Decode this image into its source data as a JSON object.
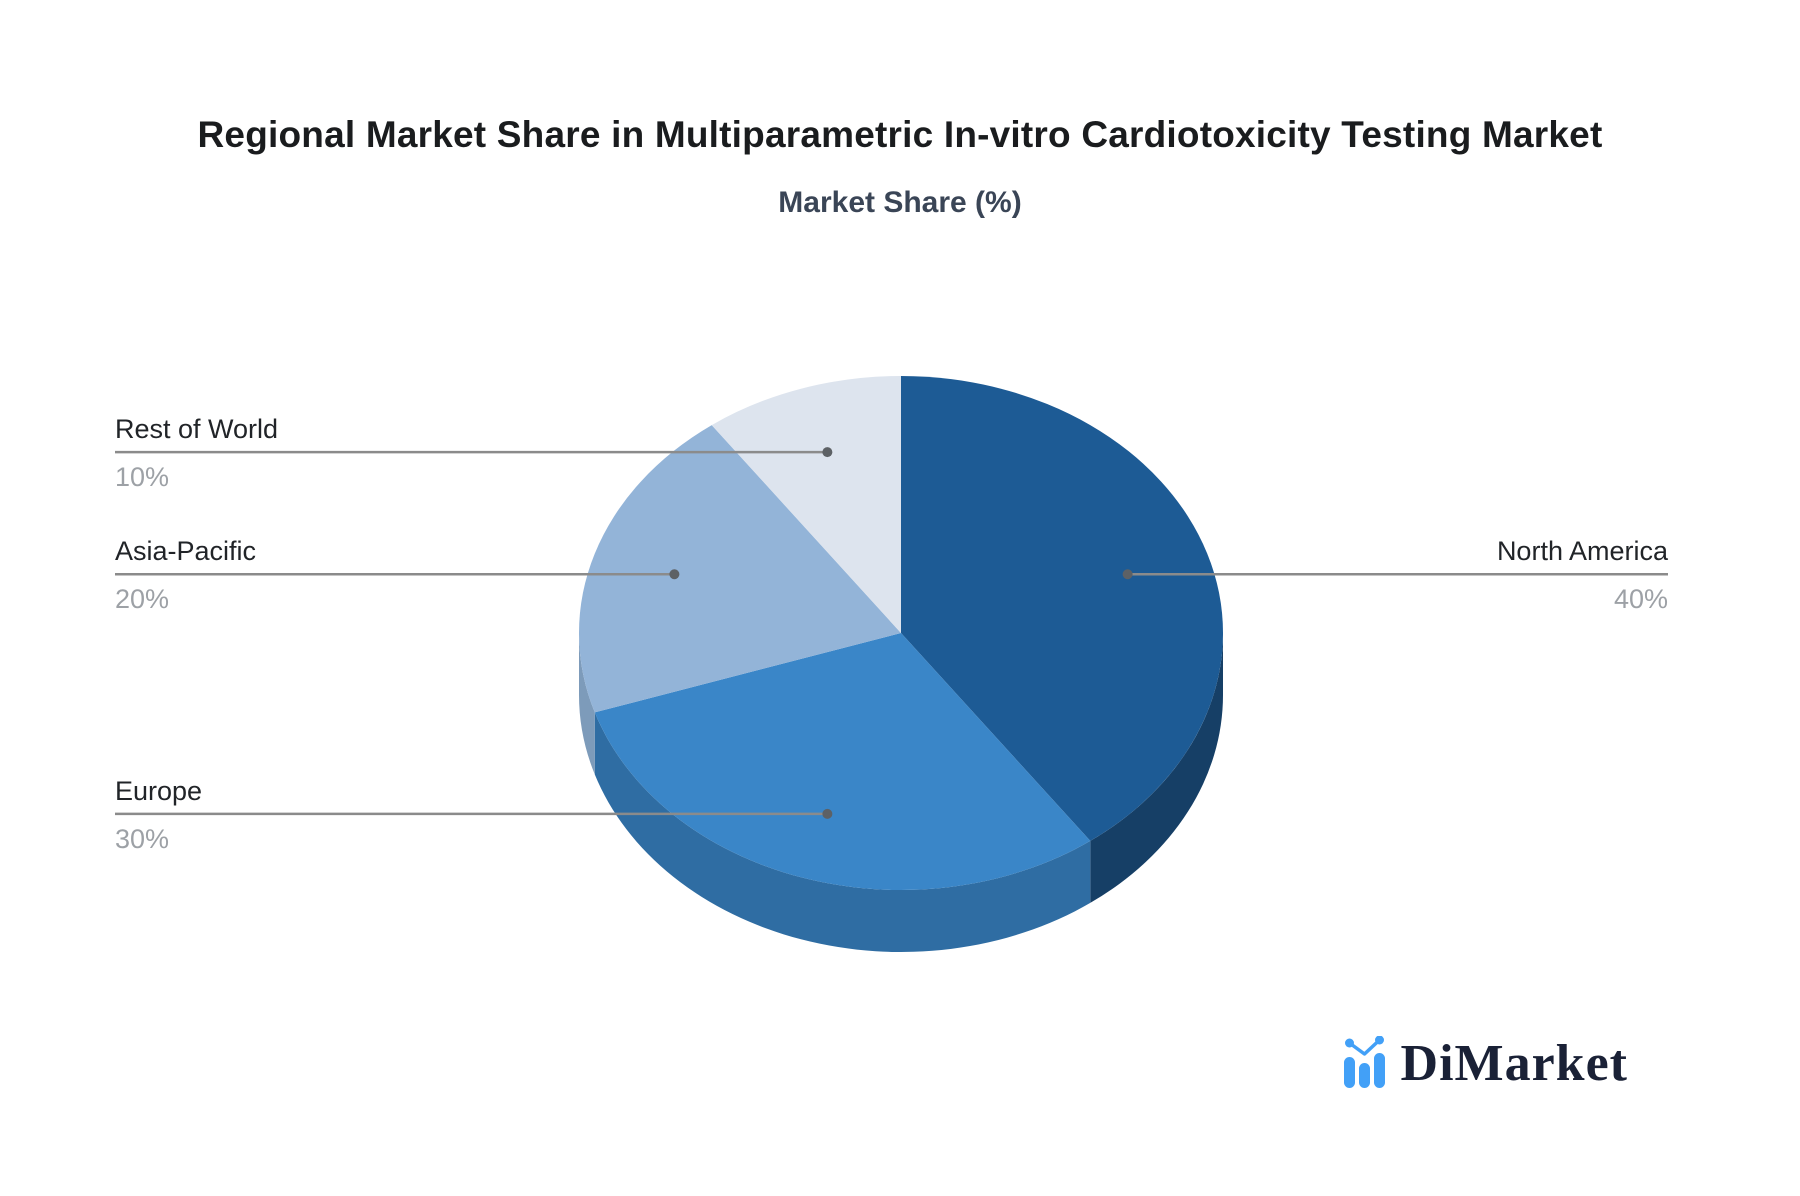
{
  "title": "Regional Market Share in Multiparametric In-vitro Cardiotoxicity Testing Market",
  "subtitle": "Market Share (%)",
  "chart_data": {
    "type": "pie",
    "style": "3d",
    "title": "Regional Market Share in Multiparametric In-vitro Cardiotoxicity Testing Market",
    "subtitle": "Market Share (%)",
    "unit": "%",
    "direction": "clockwise",
    "start_angle": "12-o-clock",
    "legend_position": "callout-leader-lines",
    "slices": [
      {
        "label": "North America",
        "value": 40,
        "display": "40%",
        "color": "#1d5b95",
        "side_color": "#163f66",
        "callout_side": "right"
      },
      {
        "label": "Europe",
        "value": 30,
        "display": "30%",
        "color": "#3a86c8",
        "side_color": "#2f6da3",
        "callout_side": "left"
      },
      {
        "label": "Asia-Pacific",
        "value": 20,
        "display": "20%",
        "color": "#93b4d8",
        "side_color": "#7d9bba",
        "callout_side": "left"
      },
      {
        "label": "Rest of World",
        "value": 10,
        "display": "10%",
        "color": "#dde4ee",
        "side_color": "#c2cedd",
        "callout_side": "left"
      }
    ],
    "leader_line_color": "#8b8b8b",
    "dot_color": "#5d6165"
  },
  "callouts": {
    "rest_of_world": {
      "label": "Rest of World",
      "value": "10%"
    },
    "asia_pacific": {
      "label": "Asia-Pacific",
      "value": "20%"
    },
    "europe": {
      "label": "Europe",
      "value": "30%"
    },
    "north_america": {
      "label": "North America",
      "value": "40%"
    }
  },
  "logo": {
    "text": "DiMarket",
    "icon": "bar-chart-logo-icon",
    "icon_color": "#42a0f7",
    "text_color": "#1a2136"
  }
}
